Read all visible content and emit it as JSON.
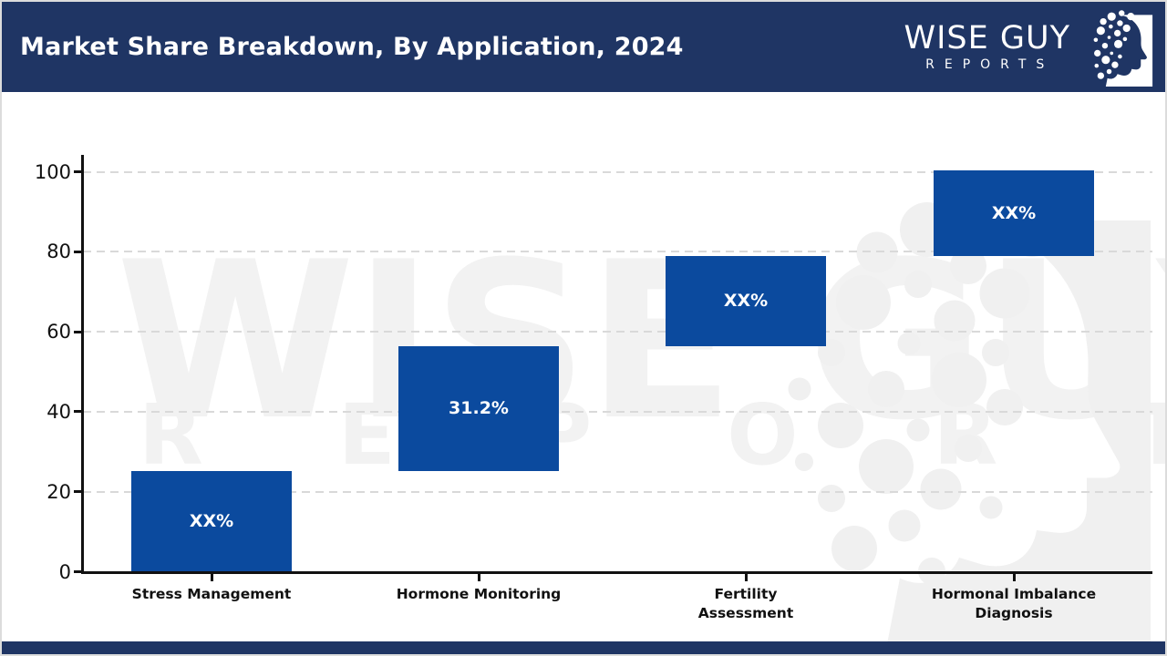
{
  "header": {
    "title": "Market Share Breakdown, By Application, 2024",
    "logo": {
      "name": "WISE GUY",
      "sub": "REPORTS"
    }
  },
  "watermark": {
    "line1": "WISE GUY",
    "line2": "R E P O R T S"
  },
  "chart_data": {
    "type": "bar",
    "variant": "waterfall",
    "title": "Market Share Breakdown, By Application, 2024",
    "categories": [
      "Stress Management",
      "Hormone Monitoring",
      "Fertility Assessment",
      "Hormonal Imbalance Diagnosis"
    ],
    "category_label_lines": [
      [
        "Stress Management"
      ],
      [
        "Hormone Monitoring"
      ],
      [
        "Fertility",
        "Assessment"
      ],
      [
        "Hormonal Imbalance",
        "Diagnosis"
      ]
    ],
    "segments": [
      {
        "category": "Stress Management",
        "start": 0,
        "end": 25.2,
        "label": "XX%"
      },
      {
        "category": "Hormone Monitoring",
        "start": 25.2,
        "end": 56.4,
        "label": "31.2%"
      },
      {
        "category": "Fertility Assessment",
        "start": 56.4,
        "end": 79.0,
        "label": "XX%"
      },
      {
        "category": "Hormonal Imbalance Diagnosis",
        "start": 79.0,
        "end": 100.3,
        "label": "XX%"
      }
    ],
    "yticks": [
      0,
      20,
      40,
      60,
      80,
      100
    ],
    "ylim": [
      0,
      100
    ],
    "xlabel": "",
    "ylabel": "",
    "grid": "horizontal-dashed",
    "legend": "none",
    "bar_color": "#0b4a9e",
    "bar_label_color": "#ffffff"
  },
  "colors": {
    "header_bg": "#1f3564",
    "footer_bg": "#1f3564",
    "bar": "#0b4a9e",
    "grid": "#d9d9d9",
    "axis": "#111111",
    "watermark": "#f2f2f2",
    "page_bg": "#ffffff"
  }
}
